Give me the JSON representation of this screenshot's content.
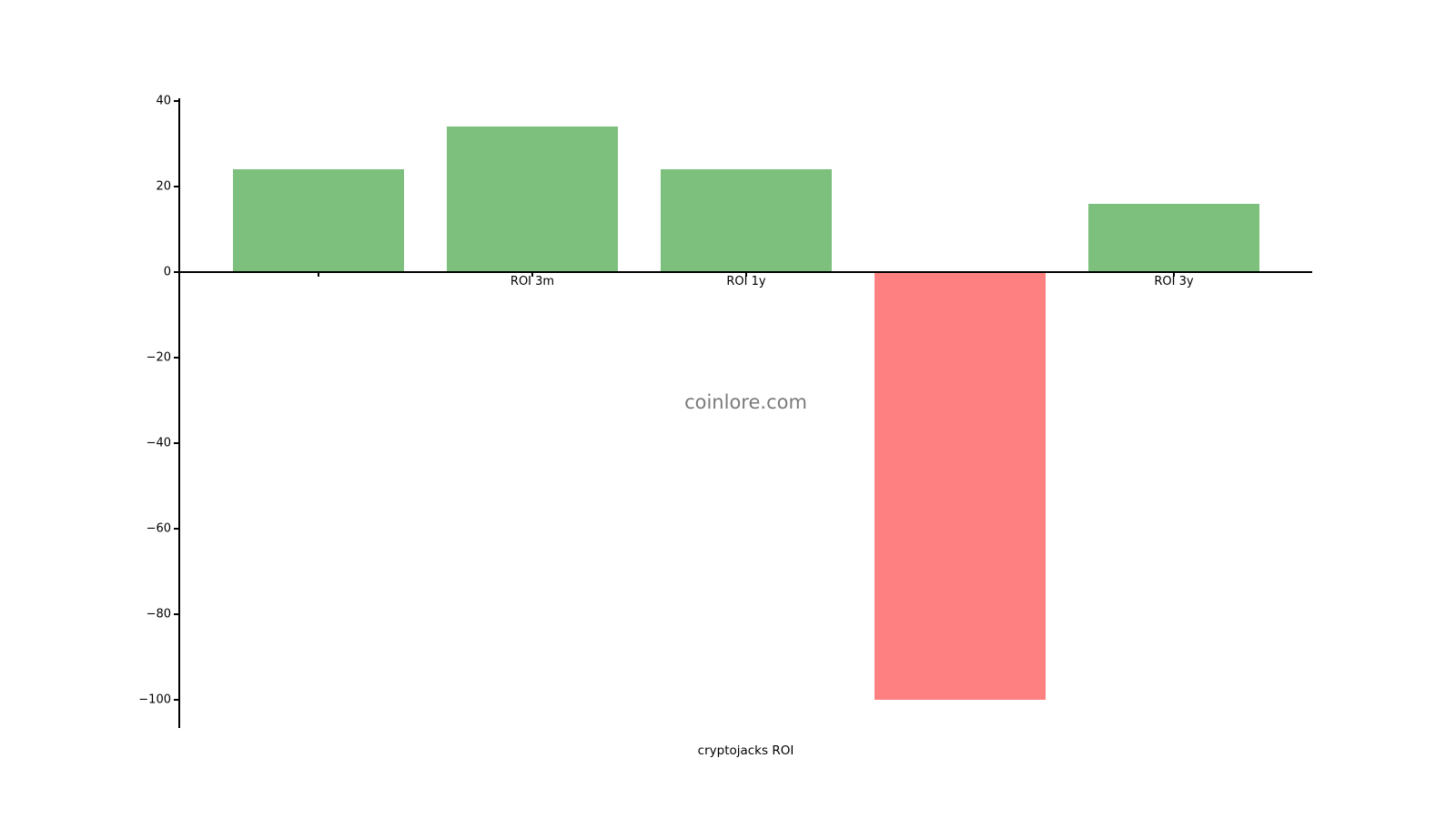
{
  "page": {
    "background": "#ffffff"
  },
  "chart_data": {
    "type": "bar",
    "title": "cryptojacks ROI",
    "watermark": "coinlore.com",
    "categories": [
      "",
      "ROI 3m",
      "ROI 1y",
      "",
      "ROI 3y"
    ],
    "values": [
      24,
      34,
      24,
      -100,
      16
    ],
    "positive_color": "#7dc07d",
    "negative_color": "#ff8080",
    "axis_color": "#000000",
    "watermark_color": "#7a7a7a",
    "y_tick_values": [
      40,
      20,
      0,
      -20,
      -40,
      -60,
      -80,
      -100
    ],
    "y_tick_labels": [
      "40",
      "20",
      "0",
      "−20",
      "−40",
      "−60",
      "−80",
      "−100"
    ],
    "ylim": [
      -106.7,
      40.7
    ],
    "xlabel": "cryptojacks ROI",
    "ylabel": "",
    "grid": false,
    "legend": "none"
  }
}
